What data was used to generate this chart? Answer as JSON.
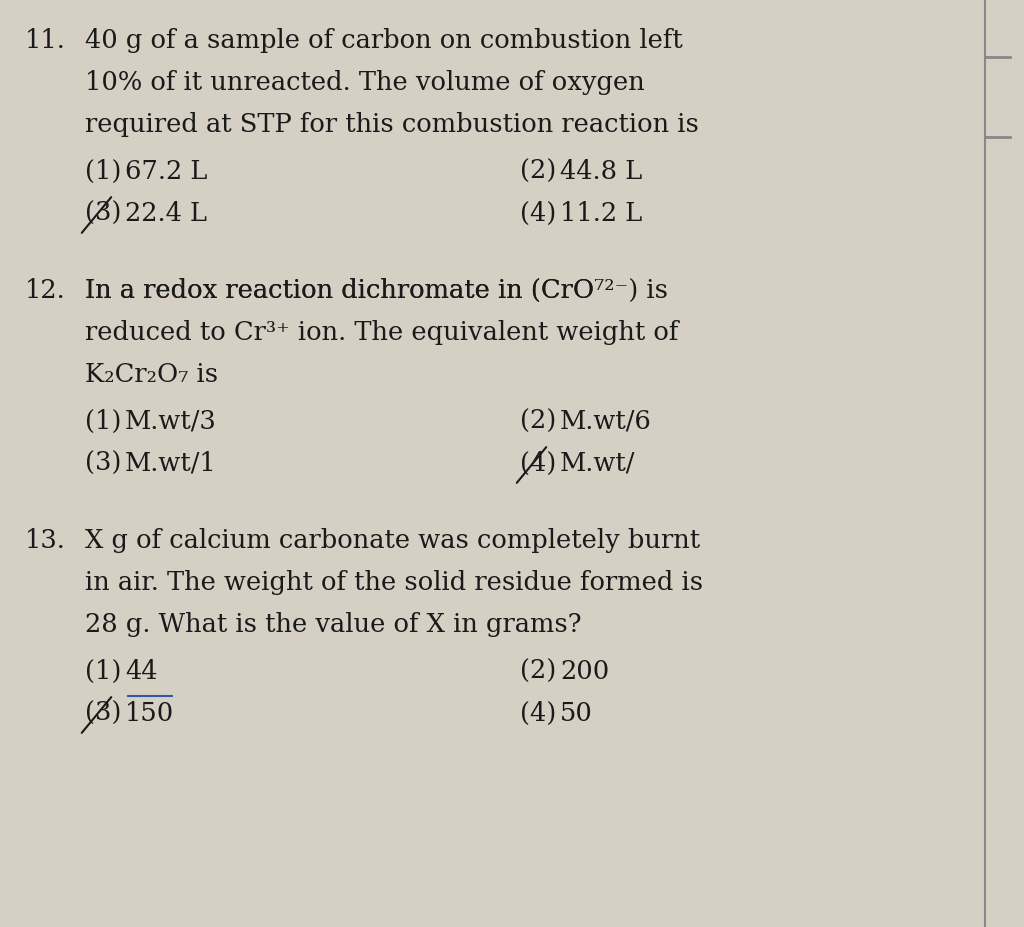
{
  "background_color": "#d6cfc4",
  "text_color": "#1a1a1a",
  "fig_width": 10.24,
  "fig_height": 9.28,
  "questions": [
    {
      "number": "11.",
      "lines": [
        "40 g of a sample of carbon on combustion left",
        "10% of it unreacted. The volume of oxygen",
        "required at STP for this combustion reaction is"
      ],
      "options": [
        {
          "label": "(1)",
          "text": "67.2 L",
          "col": 0
        },
        {
          "label": "(2)",
          "text": "44.8 L",
          "col": 1
        },
        {
          "label": "(3)",
          "text": "22.4 L",
          "col": 0,
          "correct": true
        },
        {
          "label": "(4)",
          "text": "11.2 L",
          "col": 1
        }
      ]
    },
    {
      "number": "12.",
      "lines": [
        "In a redox reaction dichromate in (CrO⁷²⁻) is",
        "reduced to Cr³⁺ ion. The equivalent weight of",
        "K₂Cr₂O₇ is"
      ],
      "options": [
        {
          "label": "(1)",
          "text": "M.wt/3",
          "col": 0
        },
        {
          "label": "(2)",
          "text": "M.wt/6",
          "col": 1
        },
        {
          "label": "(3)",
          "text": "M.wt/1",
          "col": 0
        },
        {
          "label": "(4)",
          "text": "M.wt/",
          "col": 1,
          "correct": true
        }
      ]
    },
    {
      "number": "13.",
      "lines": [
        "X g of calcium carbonate was completely burnt",
        "in air. The weight of the solid residue formed is",
        "28 g. What is the value of X in grams?"
      ],
      "options": [
        {
          "label": "(1)",
          "text": "44",
          "col": 0
        },
        {
          "label": "(2)",
          "text": "200",
          "col": 1
        },
        {
          "label": "(3)",
          "text": "150",
          "col": 0,
          "correct": true
        },
        {
          "label": "(4)",
          "text": "50",
          "col": 1
        }
      ]
    }
  ]
}
